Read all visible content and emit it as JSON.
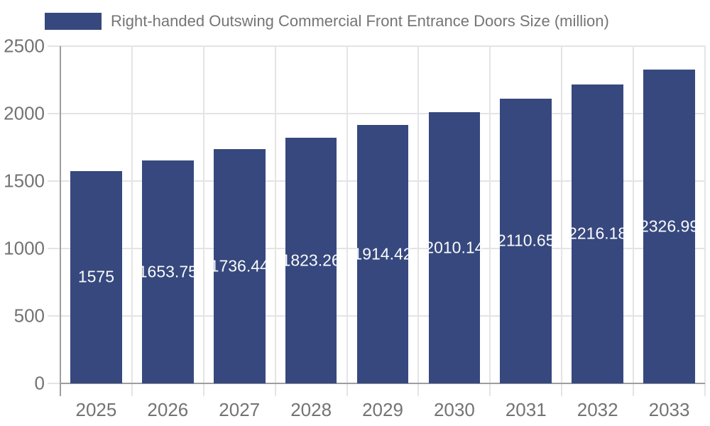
{
  "legend": {
    "label": "Right-handed Outswing Commercial Front Entrance Doors Size (million)"
  },
  "colors": {
    "bar": "#36487e",
    "grid": "#e4e4e4",
    "axis": "#9e9e9e",
    "tick_label": "#737373",
    "value_label": "#fafafa",
    "legend_text": "#757575"
  },
  "chart_data": {
    "type": "bar",
    "title": "Right-handed Outswing Commercial Front Entrance Doors Size (million)",
    "xlabel": "",
    "ylabel": "",
    "categories": [
      "2025",
      "2026",
      "2027",
      "2028",
      "2029",
      "2030",
      "2031",
      "2032",
      "2033"
    ],
    "values": [
      1575,
      1653.75,
      1736.44,
      1823.26,
      1914.42,
      2010.14,
      2110.65,
      2216.18,
      2326.99
    ],
    "value_labels": [
      "1575",
      "1653.75",
      "1736.44",
      "1823.26",
      "1914.42",
      "2010.14",
      "2110.65",
      "2216.18",
      "2326.99"
    ],
    "ylim": [
      0,
      2500
    ],
    "yticks": [
      0,
      500,
      1000,
      1500,
      2000,
      2500
    ],
    "grid": true,
    "legend_position": "top-left",
    "legend_entries": [
      "Right-handed Outswing Commercial Front Entrance Doors Size (million)"
    ],
    "value_label_position": "inside-center",
    "bar_color": "#36487e"
  }
}
